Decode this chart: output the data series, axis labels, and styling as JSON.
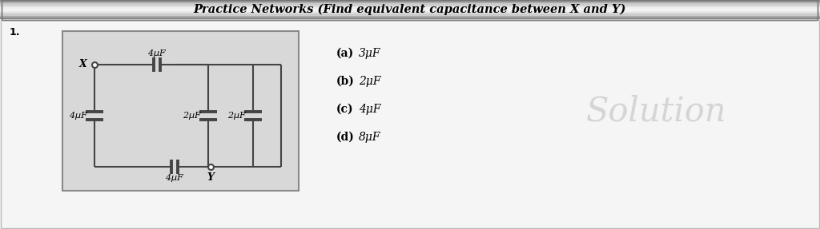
{
  "title": "Practice Networks (Find equivalent capacitance between X and Y)",
  "question_number": "1.",
  "options": [
    [
      "(a)",
      "3μF"
    ],
    [
      "(b)",
      "2μF"
    ],
    [
      "(c)",
      "4μF"
    ],
    [
      "(d)",
      "8μF"
    ]
  ],
  "solution_text": "Solution",
  "wire_color": "#444444",
  "circuit_bg": "#d8d8d8",
  "header_gradient": [
    "#888888",
    "#aaaaaa",
    "#cccccc",
    "#e0e0e0",
    "#eeeeee",
    "#f5f5f5",
    "#eeeeee",
    "#e0e0e0",
    "#cccccc",
    "#aaaaaa",
    "#888888"
  ],
  "solution_color": "#c8c8c8",
  "content_bg": "#f5f5f5",
  "border_color": "#999999"
}
